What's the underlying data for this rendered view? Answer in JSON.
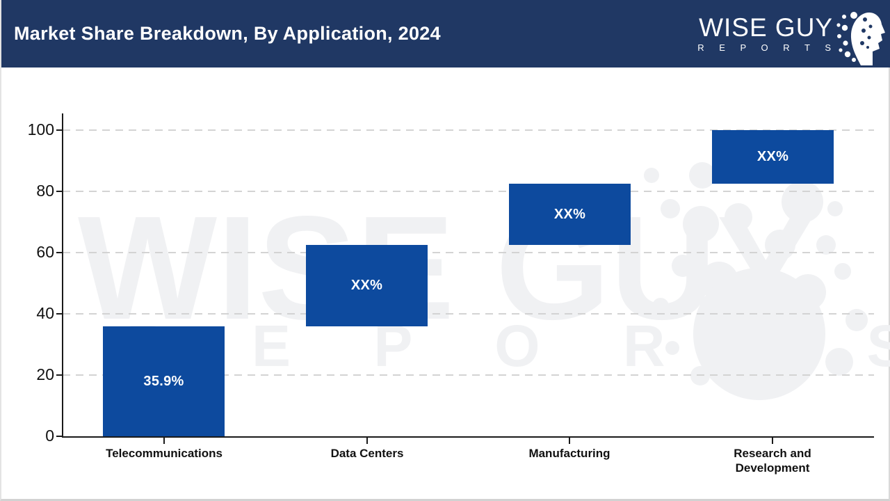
{
  "header": {
    "title": "Market Share Breakdown, By Application, 2024"
  },
  "logo": {
    "line1": "WISE GUY",
    "line2": "R E P O R T S"
  },
  "watermark": {
    "line1": "WISE GUY",
    "line2": "R E P O R T S"
  },
  "colors": {
    "header_bg": "#203864",
    "bar": "#0d4a9e",
    "grid": "#d3d3d3",
    "axis": "#1a1a1a",
    "watermark": "#f0f1f3",
    "bar_label_text": "#ffffff"
  },
  "chart_data": {
    "type": "bar",
    "subtype": "waterfall-stacked-segments",
    "title": "Market Share Breakdown, By Application, 2024",
    "categories": [
      "Telecommunications",
      "Data Centers",
      "Manufacturing",
      "Research and Development"
    ],
    "segments": [
      {
        "category": "Telecommunications",
        "start": 0,
        "end": 35.9,
        "label": "35.9%"
      },
      {
        "category": "Data Centers",
        "start": 35.9,
        "end": 62.5,
        "label": "XX%"
      },
      {
        "category": "Manufacturing",
        "start": 62.5,
        "end": 82.5,
        "label": "XX%"
      },
      {
        "category": "Research and Development",
        "start": 82.5,
        "end": 100,
        "label": "XX%"
      }
    ],
    "xlabel": "",
    "ylabel": "",
    "yticks": [
      0,
      20,
      40,
      60,
      80,
      100
    ],
    "ylim": [
      0,
      105.5
    ],
    "grid": "horizontal-dashed",
    "legend": "none"
  }
}
